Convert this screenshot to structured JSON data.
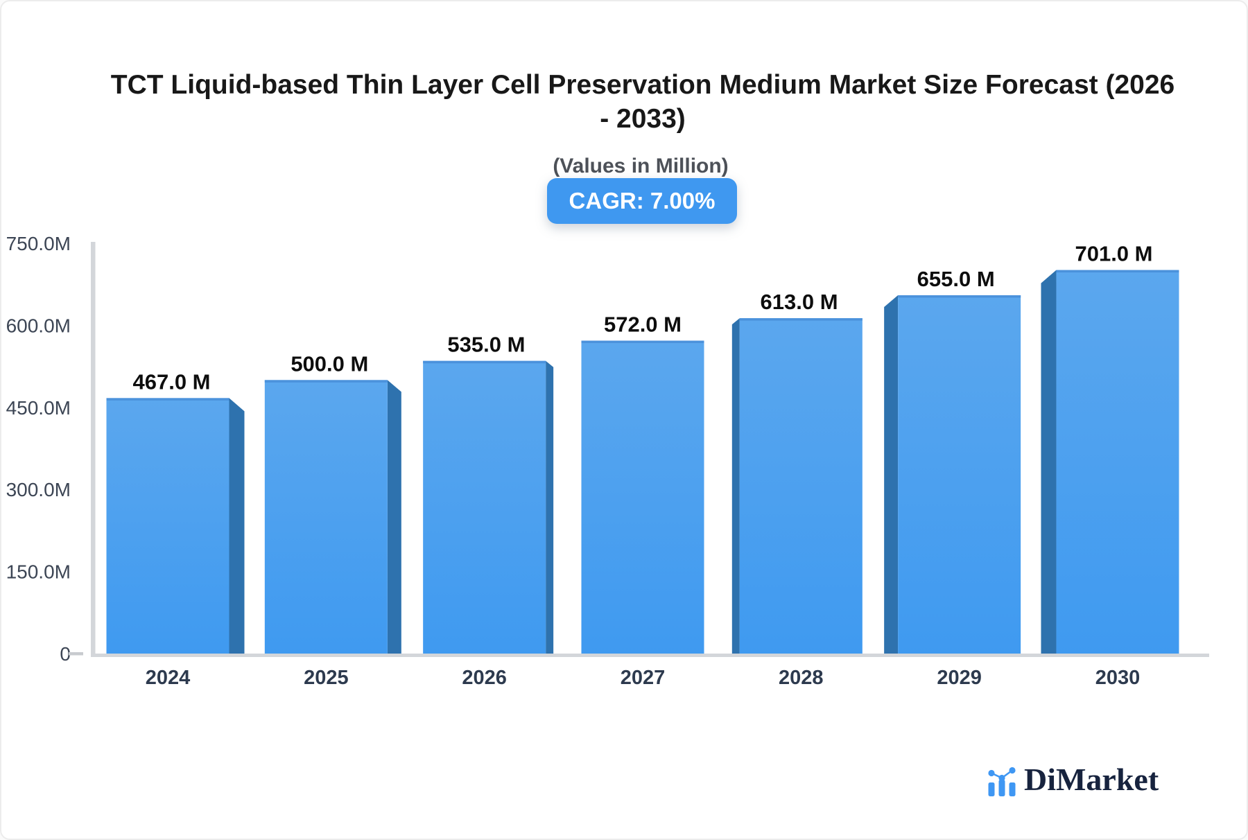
{
  "header": {
    "title_line1": "TCT Liquid-based Thin Layer Cell Preservation Medium Market Size Forecast (2026",
    "title_line2": "- 2033)",
    "subtitle": "(Values in Million)",
    "cagr_badge": "CAGR: 7.00%"
  },
  "chart_data": {
    "type": "bar",
    "title": "TCT Liquid-based Thin Layer Cell Preservation Medium Market Size Forecast (2026 - 2033)",
    "subtitle": "(Values in Million)",
    "cagr_label": "CAGR: 7.00%",
    "categories": [
      "2024",
      "2025",
      "2026",
      "2027",
      "2028",
      "2029",
      "2030"
    ],
    "values": [
      467.0,
      500.0,
      535.0,
      572.0,
      613.0,
      655.0,
      701.0
    ],
    "value_labels": [
      "467.0 M",
      "500.0 M",
      "535.0 M",
      "572.0 M",
      "613.0 M",
      "655.0 M",
      "701.0 M"
    ],
    "xlabel": "",
    "ylabel": "",
    "ylim": [
      0,
      750
    ],
    "y_tick_values": [
      0,
      150,
      300,
      450,
      600,
      750
    ],
    "y_tick_labels": [
      "0",
      "150.0M",
      "300.0M",
      "450.0M",
      "600.0M",
      "750.0M"
    ],
    "grid": false,
    "legend_position": "none",
    "style_3d": true,
    "colors": {
      "bar_face_top": "#5BA7EE",
      "bar_face_bottom": "#3F9AF0",
      "bar_top_edge": "#4B92DC",
      "bar_side": "#2E72AE",
      "axis_line": "#d3d6da",
      "tick_dash": "#c8cbcf",
      "value_label": "#0d0d0d",
      "x_label": "#2d3a4e",
      "y_label": "#3c4554"
    }
  },
  "branding": {
    "logo_text": "DiMarket",
    "logo_icon": "bar-chart-with-trend-dots-icon",
    "logo_accent": "#3F97F3",
    "logo_text_color": "#17233e"
  }
}
